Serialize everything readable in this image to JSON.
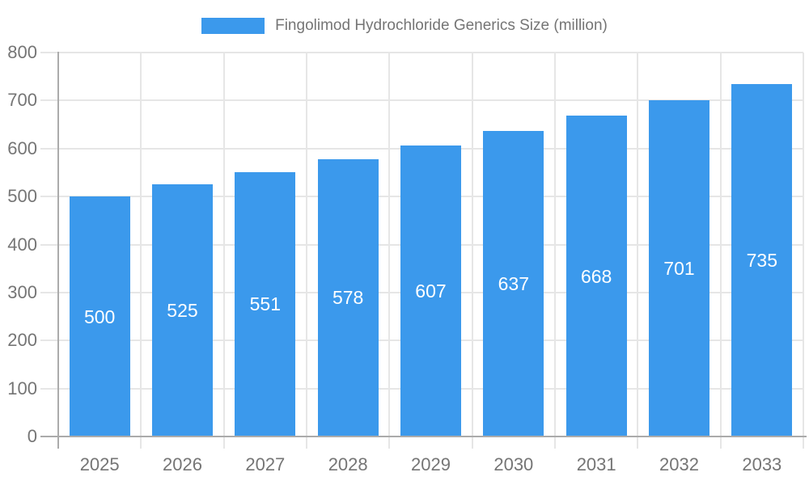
{
  "legend": {
    "label": "Fingolimod Hydrochloride Generics Size (million)",
    "swatch_color": "#3B99EC"
  },
  "chart_data": {
    "type": "bar",
    "title": "Fingolimod Hydrochloride Generics Size (million)",
    "categories": [
      "2025",
      "2026",
      "2027",
      "2028",
      "2029",
      "2030",
      "2031",
      "2032",
      "2033"
    ],
    "values": [
      500,
      525,
      551,
      578,
      607,
      637,
      668,
      701,
      735
    ],
    "xlabel": "",
    "ylabel": "",
    "ylim": [
      0,
      800
    ],
    "yticks": [
      0,
      100,
      200,
      300,
      400,
      500,
      600,
      700,
      800
    ],
    "grid": true,
    "legend_position": "top",
    "bar_color": "#3B99EC",
    "value_label_color": "#FFFFFF",
    "axis_text_color": "#757575",
    "grid_color": "#E6E6E6",
    "axis_line_color": "#ABABAB",
    "background_color": "#FFFFFF"
  }
}
